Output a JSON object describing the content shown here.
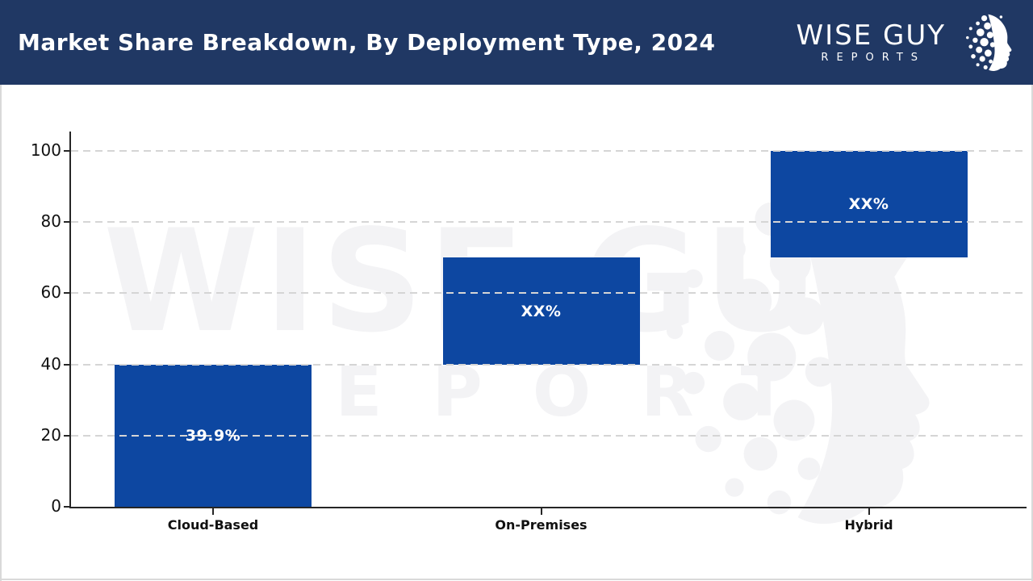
{
  "header": {
    "title": "Market Share Breakdown, By Deployment Type, 2024",
    "logo_line1": "WISE GUY",
    "logo_line2": "REPORTS"
  },
  "watermark": {
    "line1": "WISE GUY",
    "line2": "REPORTS"
  },
  "colors": {
    "header_bg": "#203864",
    "bar": "#0d47a1",
    "bar_label_text": "#ffffff",
    "gridline": "#d5d5d5",
    "axis": "#262626",
    "tick_label": "#111111",
    "watermark": "#f3f3f5",
    "background": "#ffffff"
  },
  "chart_data": {
    "type": "bar",
    "subtype": "floating-stacked-waterfall",
    "title": "Market Share Breakdown, By Deployment Type, 2024",
    "xlabel": "",
    "ylabel": "",
    "categories": [
      "Cloud-Based",
      "On-Premises",
      "Hybrid"
    ],
    "segments": [
      {
        "category": "Cloud-Based",
        "start": 0,
        "end": 39.9,
        "label": "39.9%"
      },
      {
        "category": "On-Premises",
        "start": 39.9,
        "end": 70,
        "label": "XX%"
      },
      {
        "category": "Hybrid",
        "start": 70,
        "end": 100,
        "label": "XX%"
      }
    ],
    "yticks": [
      0,
      20,
      40,
      60,
      80,
      100
    ],
    "ylim": [
      0,
      105.4
    ],
    "grid": "horizontal dashed, drawn above bars",
    "legend": "none"
  }
}
